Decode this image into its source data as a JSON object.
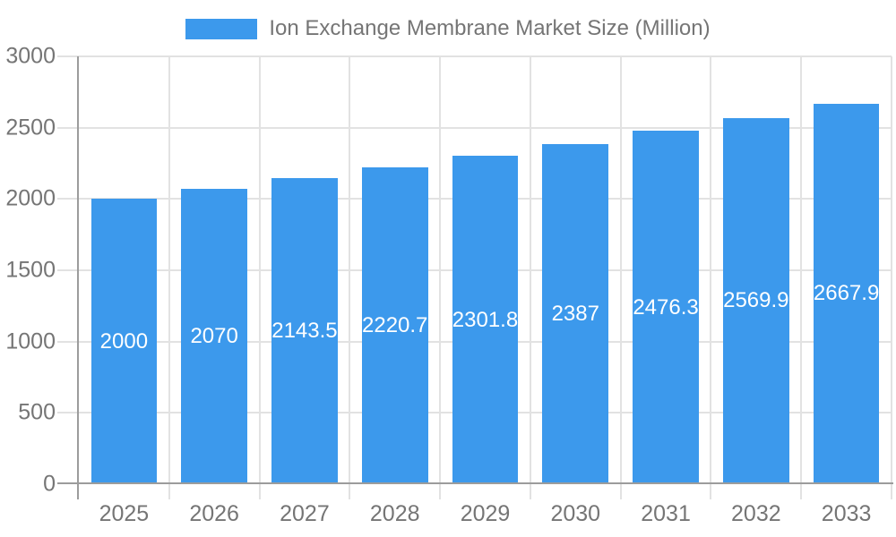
{
  "chart_data": {
    "type": "bar",
    "title": "Ion Exchange Membrane Market Size (Million)",
    "categories": [
      "2025",
      "2026",
      "2027",
      "2028",
      "2029",
      "2030",
      "2031",
      "2032",
      "2033"
    ],
    "values": [
      2000,
      2070,
      2143.5,
      2220.7,
      2301.8,
      2387,
      2476.3,
      2569.9,
      2667.9
    ],
    "value_labels": [
      "2000",
      "2070",
      "2143.5",
      "2220.7",
      "2301.8",
      "2387",
      "2476.3",
      "2569.9",
      "2667.9"
    ],
    "xlabel": "",
    "ylabel": "",
    "ylim": [
      0,
      3000
    ],
    "y_ticks": [
      0,
      500,
      1000,
      1500,
      2000,
      2500,
      3000
    ],
    "y_tick_labels": [
      "0",
      "500",
      "1000",
      "1500",
      "2000",
      "2500",
      "3000"
    ],
    "grid": true,
    "legend_position": "top-center",
    "colors": {
      "bar": "#3c99ec",
      "axis": "#9c9c9c",
      "grid": "#e2e2e2",
      "tick_text": "#757575",
      "legend_text": "#757575",
      "value_label_text": "#ffffff",
      "background": "#ffffff"
    }
  }
}
